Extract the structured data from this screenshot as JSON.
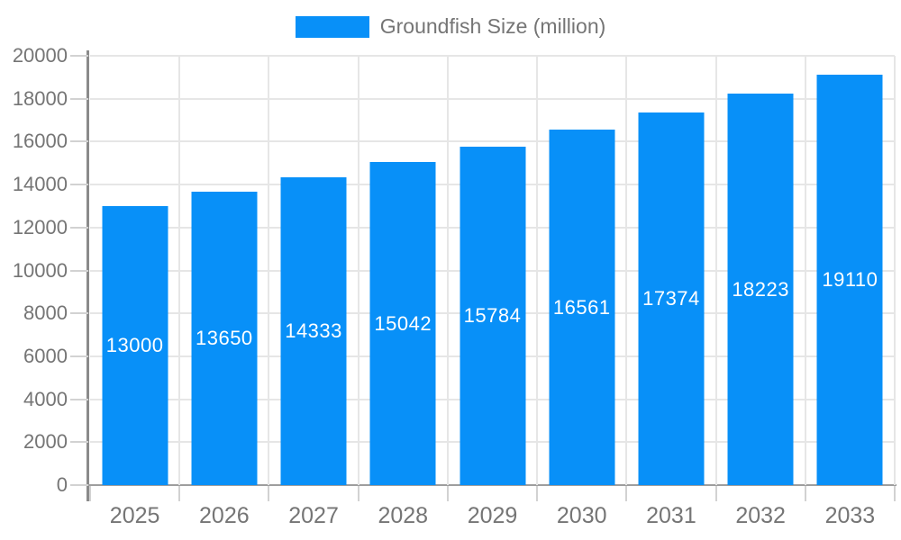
{
  "chart_data": {
    "type": "bar",
    "title": "",
    "categories": [
      "2025",
      "2026",
      "2027",
      "2028",
      "2029",
      "2030",
      "2031",
      "2032",
      "2033"
    ],
    "series": [
      {
        "name": "Groundfish Size (million)",
        "values": [
          13000,
          13650,
          14333,
          15042,
          15784,
          16561,
          17374,
          18223,
          19110
        ]
      }
    ],
    "ylim": [
      0,
      20000
    ],
    "ytick_step": 2000,
    "yticks": [
      0,
      2000,
      4000,
      6000,
      8000,
      10000,
      12000,
      14000,
      16000,
      18000,
      20000
    ],
    "xlabel": "",
    "ylabel": "",
    "grid": true,
    "legend_position": "top-center",
    "bar_labels_inside": true,
    "colors": {
      "bar": "#0890f8",
      "bar_label_text": "#ffffff",
      "grid_line": "#e6e6e6",
      "y_axis_line": "#8a8a8a",
      "x_axis_line": "#9e9e9e",
      "tick": "#d2d2d2",
      "axis_text": "#757575",
      "legend_text": "#757575",
      "background": "#ffffff"
    }
  }
}
